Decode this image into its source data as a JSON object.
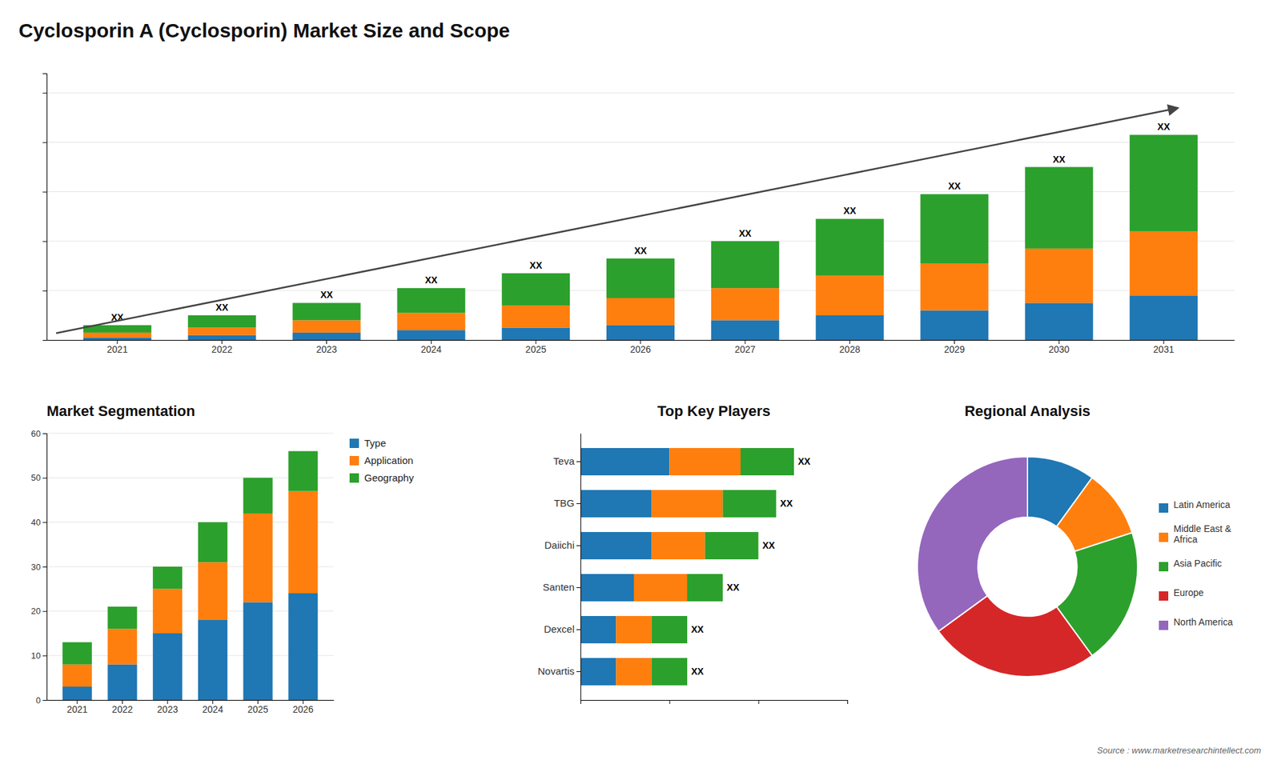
{
  "chart_data": [
    {
      "type": "bar",
      "title": "Cyclosporin A (Cyclosporin) Market Size and Scope",
      "stacked": true,
      "categories": [
        "2021",
        "2022",
        "2023",
        "2024",
        "2025",
        "2026",
        "2027",
        "2028",
        "2029",
        "2030",
        "2031"
      ],
      "series": [
        {
          "values": [
            1,
            2,
            3,
            4,
            5,
            6,
            8,
            10,
            12,
            15,
            18
          ]
        },
        {
          "values": [
            2,
            3,
            5,
            7,
            9,
            11,
            13,
            16,
            19,
            22,
            26
          ]
        },
        {
          "values": [
            3,
            5,
            7,
            10,
            13,
            16,
            19,
            23,
            28,
            33,
            39
          ],
          "value_labels": [
            "XX",
            "XX",
            "XX",
            "XX",
            "XX",
            "XX",
            "XX",
            "XX",
            "XX",
            "XX",
            "XX"
          ]
        }
      ],
      "ylim": [
        0,
        107.9
      ],
      "yticks": [
        0,
        20,
        40,
        60,
        80,
        100
      ],
      "grid": true,
      "tick_labels": "x"
    },
    {
      "type": "bar",
      "title": "Market Segmentation",
      "stacked": true,
      "categories": [
        "2021",
        "2022",
        "2023",
        "2024",
        "2025",
        "2026"
      ],
      "series": [
        {
          "name": "Type",
          "values": [
            3,
            8,
            15,
            18,
            22,
            24
          ]
        },
        {
          "name": "Application",
          "values": [
            5,
            8,
            10,
            13,
            20,
            23
          ]
        },
        {
          "name": "Geography",
          "values": [
            5,
            5,
            5,
            9,
            8,
            9
          ]
        }
      ],
      "ylim": [
        0,
        60
      ],
      "yticks": [
        0,
        10,
        20,
        30,
        40,
        50,
        60
      ],
      "grid": true,
      "legend": "right"
    },
    {
      "type": "bar",
      "title": "Top Key Players",
      "orientation": "horizontal",
      "stacked": true,
      "categories": [
        "Teva",
        "TBG",
        "Daiichi",
        "Santen",
        "Dexcel",
        "Novartis"
      ],
      "series": [
        {
          "values": [
            5,
            4,
            4,
            3,
            2,
            2
          ]
        },
        {
          "values": [
            4,
            4,
            3,
            3,
            2,
            2
          ]
        },
        {
          "values": [
            3,
            3,
            3,
            2,
            2,
            2
          ],
          "value_labels": [
            "XX",
            "XX",
            "XX",
            "XX",
            "XX",
            "XX"
          ]
        }
      ],
      "xlim": [
        0,
        15
      ],
      "xticks": [
        0,
        5,
        10,
        15
      ],
      "tick_labels": "y"
    },
    {
      "type": "donut",
      "title": "Regional Analysis",
      "categories": [
        "Latin America",
        "Middle East &\nAfrica",
        "Asia Pacific",
        "Europe",
        "North America"
      ],
      "values": [
        10,
        10,
        20,
        25,
        35
      ],
      "legend": "right",
      "annotations": [
        "Source : www.marketresearchintellect.com"
      ]
    }
  ]
}
